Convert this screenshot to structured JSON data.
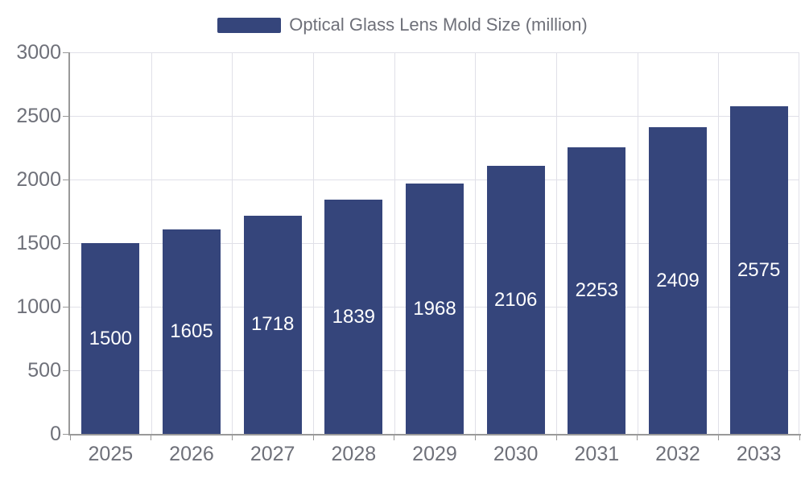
{
  "legend": {
    "label": "Optical Glass Lens Mold Size (million)"
  },
  "chart_data": {
    "type": "bar",
    "title": "Optical Glass Lens Mold Size (million)",
    "categories": [
      "2025",
      "2026",
      "2027",
      "2028",
      "2029",
      "2030",
      "2031",
      "2032",
      "2033"
    ],
    "series": [
      {
        "name": "Optical Glass Lens Mold Size (million)",
        "values": [
          1500,
          1605,
          1718,
          1839,
          1968,
          2106,
          2253,
          2409,
          2575
        ]
      }
    ],
    "xlabel": "",
    "ylabel": "",
    "ylim": [
      0,
      3000
    ],
    "y_ticks": [
      0,
      500,
      1000,
      1500,
      2000,
      2500,
      3000
    ],
    "grid": true,
    "legend_position": "top-center",
    "value_labels": "inside-center",
    "colors": {
      "bar": "#35457B",
      "bar_value_label": "#FFFFFF",
      "axis_tick_label": "#6E7079",
      "legend_text": "#6E7079",
      "grid_line": "#E0E0E8",
      "axis_line": "#999999",
      "background": "#FFFFFF"
    }
  }
}
